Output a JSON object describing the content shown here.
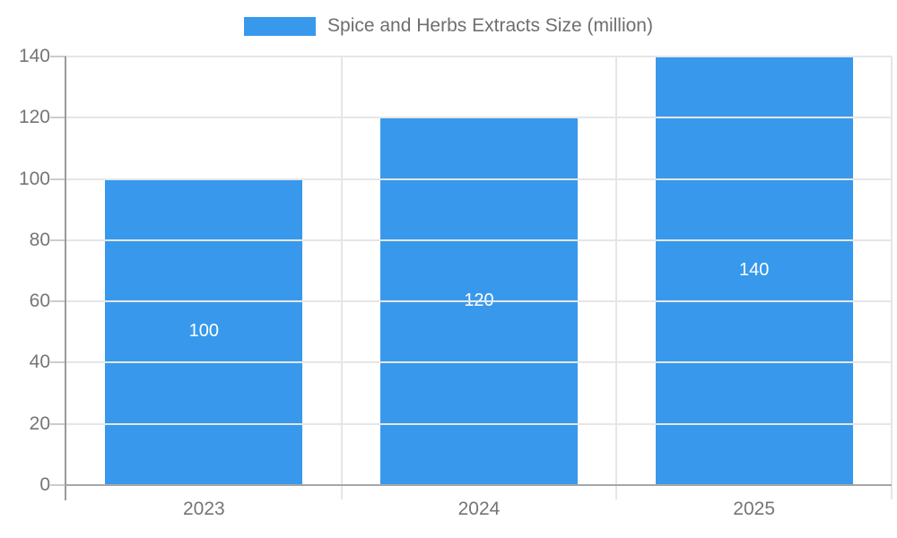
{
  "legend": {
    "label": "Spice and Herbs Extracts Size (million)",
    "swatch_color": "#3899EC"
  },
  "chart_data": {
    "type": "bar",
    "title": "Spice and Herbs Extracts Size (million)",
    "categories": [
      "2023",
      "2024",
      "2025"
    ],
    "values": [
      100,
      120,
      140
    ],
    "xlabel": "",
    "ylabel": "",
    "ylim": [
      0,
      140
    ],
    "yticks": [
      0,
      20,
      40,
      60,
      80,
      100,
      120,
      140
    ],
    "grid": true,
    "legend_position": "top-center",
    "colors": {
      "bar": "#3899EC",
      "grid": "#E6E6E6",
      "axis": "#9E9E9E",
      "tick_label": "#757575",
      "value_label": "#FFFFFF",
      "legend_text": "#6E6E6E"
    }
  }
}
